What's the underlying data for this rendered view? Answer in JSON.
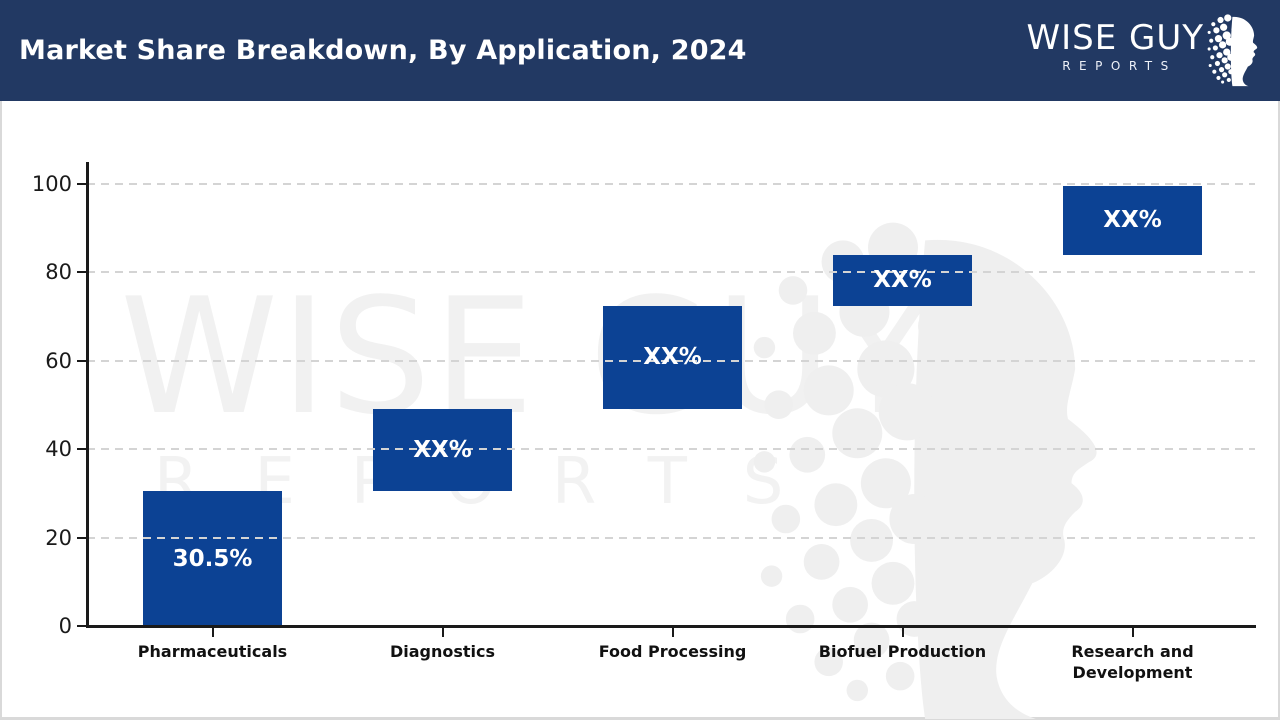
{
  "header": {
    "title": "Market Share Breakdown, By Application, 2024",
    "logo": {
      "wordmark": "WISE GUY",
      "subtext": "REPORTS"
    }
  },
  "watermark": {
    "wordmark": "WISE GUY",
    "subtext": "REPORTS"
  },
  "colors": {
    "header_bg": "#223963",
    "bar": "#0c4294",
    "bar_label": "#ffffff",
    "grid": "#d4d4d4",
    "axis": "#1a1a1a",
    "watermark": "#f0f0f0"
  },
  "chart_data": {
    "type": "bar",
    "subtype": "floating-segment-waterfall",
    "title": "Market Share Breakdown, By Application, 2024",
    "xlabel": "",
    "ylabel": "",
    "ylim": [
      0,
      105
    ],
    "yticks": [
      0,
      20,
      40,
      60,
      80,
      100
    ],
    "grid": {
      "axis": "y",
      "style": "dashed",
      "drawn_over_bars": true
    },
    "legend": "none",
    "categories": [
      "Pharmaceuticals",
      "Diagnostics",
      "Food Processing",
      "Biofuel Production",
      "Research and\nDevelopment"
    ],
    "bars": [
      {
        "category": "Pharmaceuticals",
        "base": 0,
        "top": 30.5,
        "value": 30.5,
        "label": "30.5%"
      },
      {
        "category": "Diagnostics",
        "base": 30.5,
        "top": 49,
        "value": 18.5,
        "label": "XX%"
      },
      {
        "category": "Food Processing",
        "base": 49,
        "top": 72.5,
        "value": 23.5,
        "label": "XX%"
      },
      {
        "category": "Biofuel Production",
        "base": 72.5,
        "top": 84,
        "value": 11.5,
        "label": "XX%"
      },
      {
        "category": "Research and Development",
        "base": 84,
        "top": 99.5,
        "value": 15.5,
        "label": "XX%"
      }
    ]
  }
}
